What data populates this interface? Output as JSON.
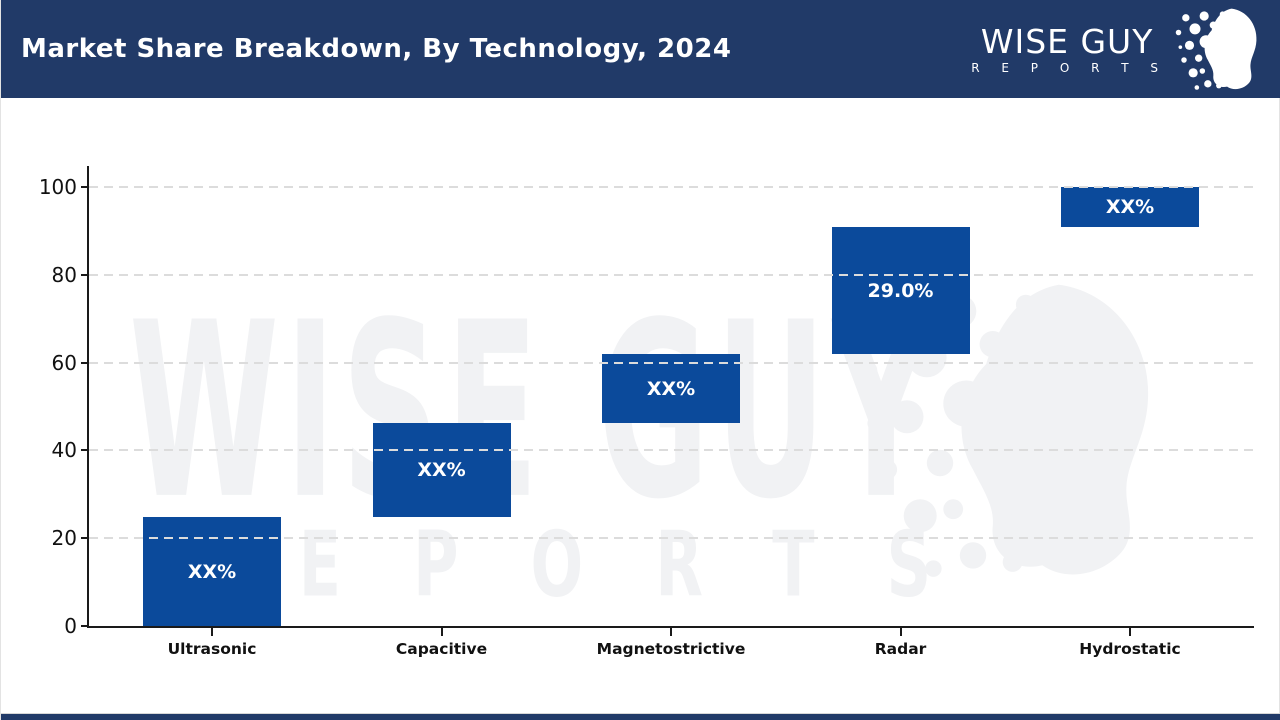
{
  "header": {
    "title": "Market Share Breakdown, By Technology, 2024",
    "bg_color": "#213a68",
    "logo": {
      "line1": "WISE GUY",
      "line2": "R E P O R T S"
    }
  },
  "watermark": {
    "line1": "WISE GUY",
    "line2": "REPORTS"
  },
  "footer": {
    "bg_color": "#213a68"
  },
  "chart_data": {
    "type": "bar",
    "subtype": "waterfall",
    "title": "Market Share Breakdown, By Technology, 2024",
    "xlabel": "",
    "ylabel": "",
    "categories": [
      "Ultrasonic",
      "Capacitive",
      "Magnetostrictive",
      "Radar",
      "Hydrostatic"
    ],
    "segments": [
      {
        "category": "Ultrasonic",
        "start": 0,
        "end": 24.8,
        "label": "XX%"
      },
      {
        "category": "Capacitive",
        "start": 24.8,
        "end": 46.2,
        "label": "XX%"
      },
      {
        "category": "Magnetostrictive",
        "start": 46.2,
        "end": 61.9,
        "label": "XX%"
      },
      {
        "category": "Radar",
        "start": 61.9,
        "end": 90.9,
        "label": "29.0%"
      },
      {
        "category": "Hydrostatic",
        "start": 90.9,
        "end": 100,
        "label": "XX%"
      }
    ],
    "yticks": [
      0,
      20,
      40,
      60,
      80,
      100
    ],
    "ylim": [
      0,
      104.5
    ],
    "bar_color": "#0b4a9b",
    "grid": "horizontal dashed, drawn above bars",
    "legend": "none"
  }
}
